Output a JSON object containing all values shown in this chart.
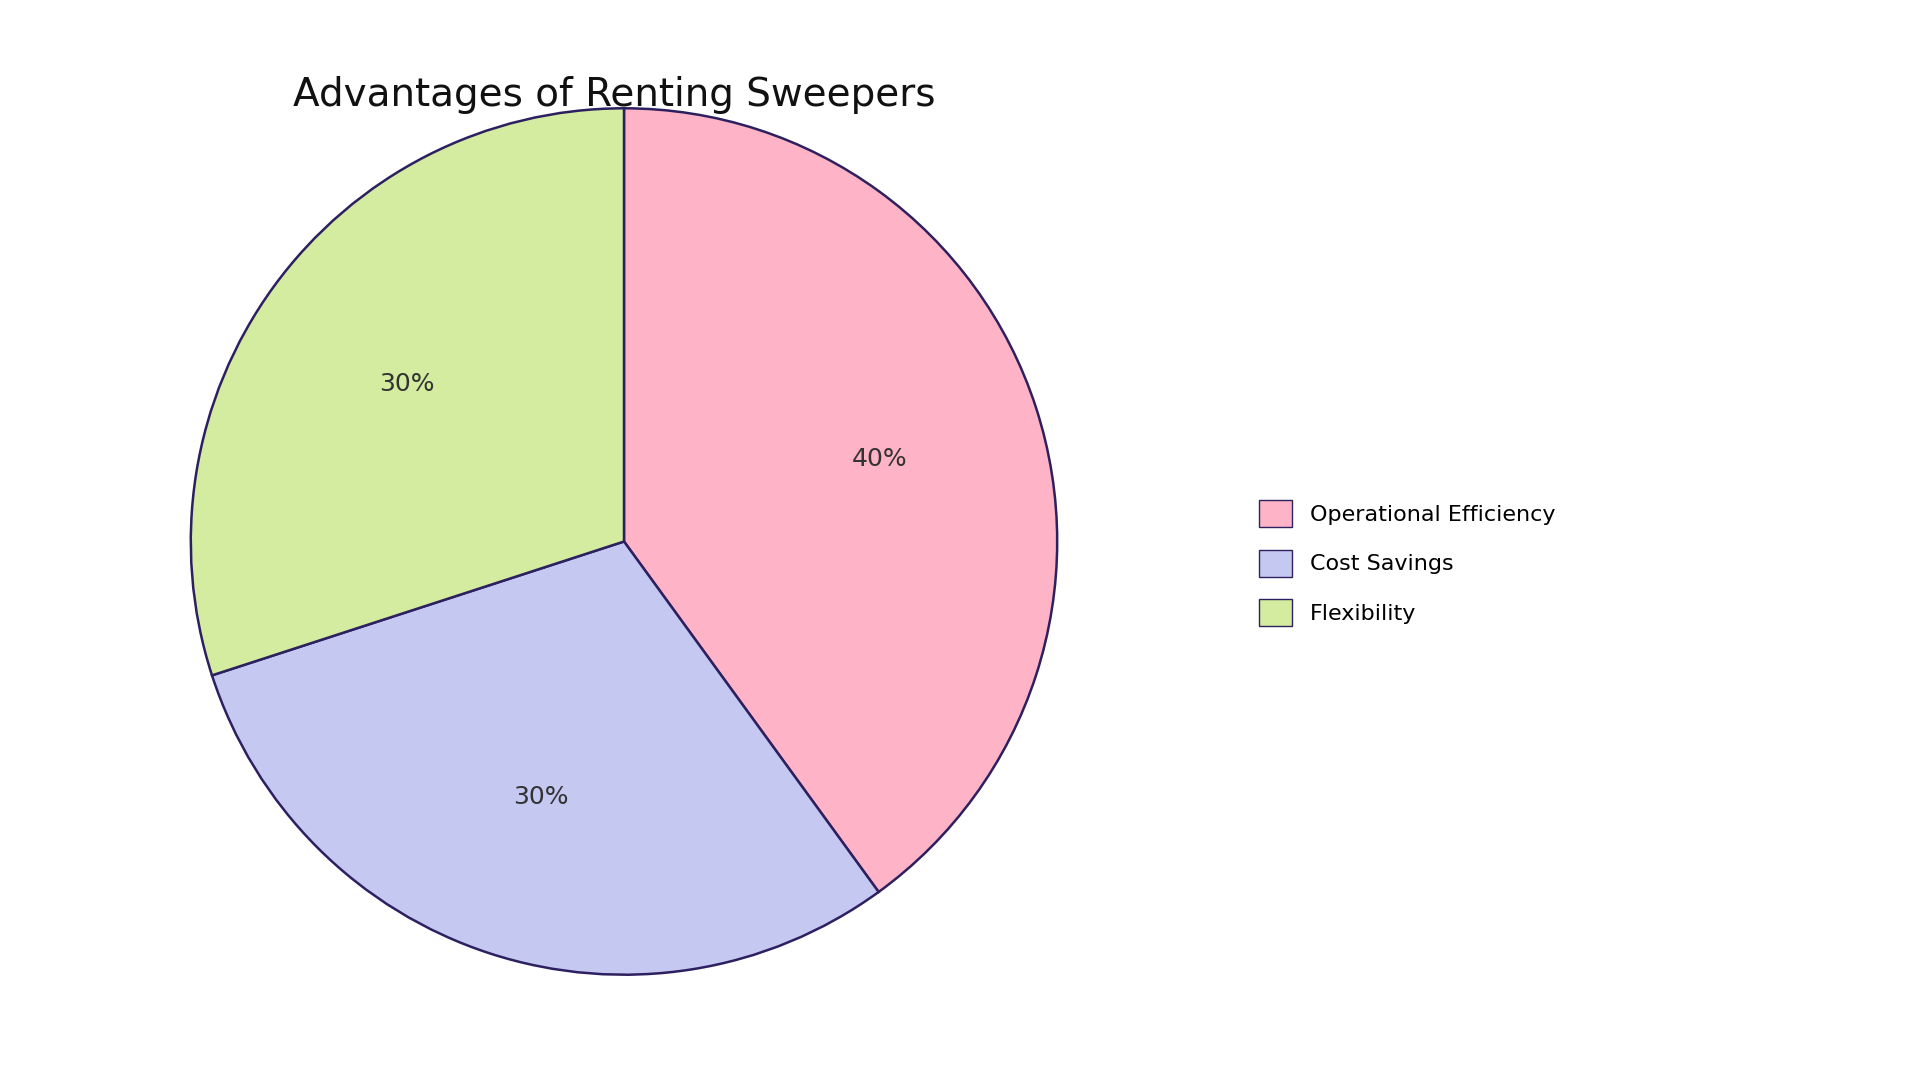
{
  "title": "Advantages of Renting Sweepers",
  "labels": [
    "Operational Efficiency",
    "Cost Savings",
    "Flexibility"
  ],
  "values": [
    40,
    30,
    30
  ],
  "colors": [
    "#FFB3C6",
    "#C5C8F0",
    "#D4ECA0"
  ],
  "edge_color": "#2d2060",
  "edge_width": 1.8,
  "startangle": 90,
  "background_color": "#ffffff",
  "title_fontsize": 28,
  "legend_fontsize": 16,
  "autopct_fontsize": 18,
  "pctdistance": 0.62
}
